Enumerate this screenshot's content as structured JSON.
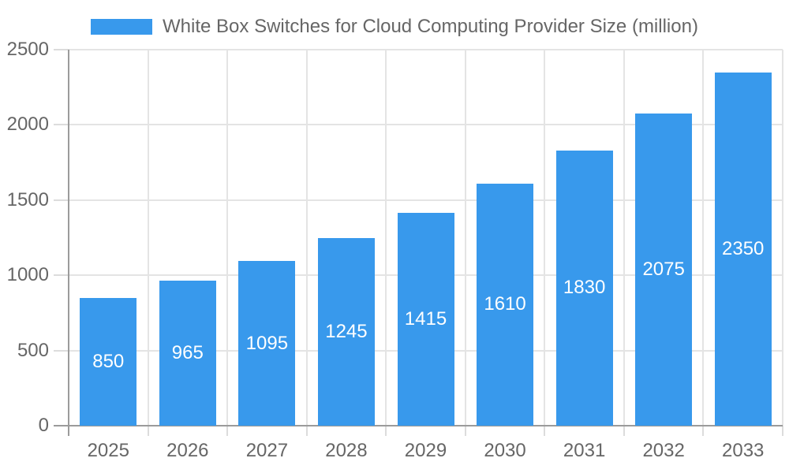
{
  "chart_data": {
    "type": "bar",
    "title": "White Box Switches for Cloud Computing Provider Size (million)",
    "categories": [
      "2025",
      "2026",
      "2027",
      "2028",
      "2029",
      "2030",
      "2031",
      "2032",
      "2033"
    ],
    "values": [
      850,
      965,
      1095,
      1245,
      1415,
      1610,
      1830,
      2075,
      2350
    ],
    "xlabel": "",
    "ylabel": "",
    "ylim": [
      0,
      2500
    ],
    "yticks": [
      0,
      500,
      1000,
      1500,
      2000,
      2500
    ],
    "grid": true,
    "legend_position": "top-center",
    "value_label_position": "inside-center",
    "bar_color": "#3899EC",
    "value_label_color": "#FFFFFF"
  },
  "style": {
    "background": "#FFFFFF",
    "grid_color": "#E4E4E4",
    "tick_mark_color": "#DCDCDC",
    "axis_line_color": "#9B9B9B",
    "tick_text_color": "#666666",
    "legend_text_color": "#666666"
  }
}
